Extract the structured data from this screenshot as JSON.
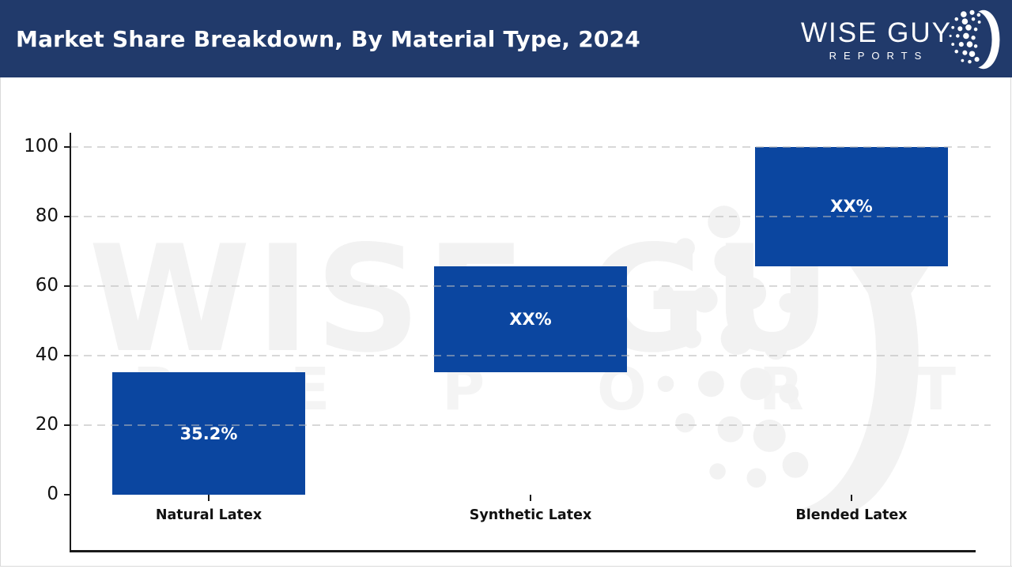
{
  "header": {
    "title": "Market Share Breakdown, By Material Type, 2024",
    "bg_color": "#213a6b",
    "logo": {
      "line1": "WISE GUY",
      "line2": "REPORTS"
    }
  },
  "watermark": {
    "line1": "WISE GUY",
    "line2": "R E P O R T S"
  },
  "chart_data": {
    "type": "bar",
    "variant": "waterfall",
    "title": "Market Share Breakdown, By Material Type, 2024",
    "categories": [
      "Natural Latex",
      "Synthetic Latex",
      "Blended Latex"
    ],
    "segments": [
      {
        "category": "Natural Latex",
        "start": 0,
        "end": 35.2,
        "label": "35.2%"
      },
      {
        "category": "Synthetic Latex",
        "start": 35.2,
        "end": 65.7,
        "label": "XX%"
      },
      {
        "category": "Blended Latex",
        "start": 65.7,
        "end": 100,
        "label": "XX%"
      }
    ],
    "ylim": [
      0,
      100
    ],
    "yticks": [
      0,
      20,
      40,
      60,
      80,
      100
    ],
    "grid": {
      "axis": "y",
      "style": "dashed"
    },
    "legend": null,
    "bar_color": "#0b46a0",
    "bar_label_color": "#ffffff",
    "axis_color": "#1a1a1a",
    "gridline_color": "#dcdcdc",
    "tick_label_color": "#111111"
  }
}
